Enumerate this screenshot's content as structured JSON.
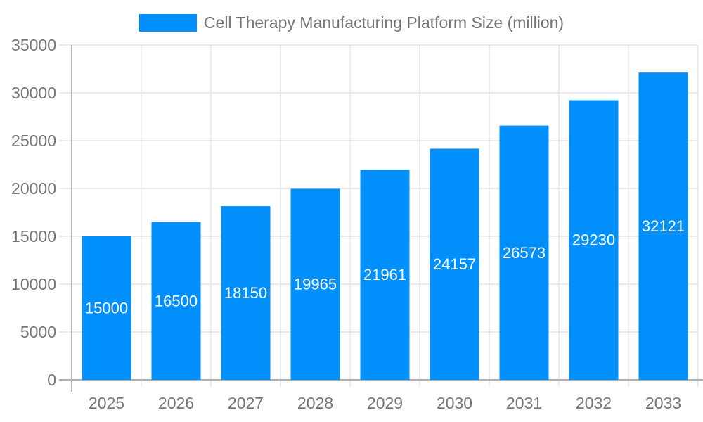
{
  "chart_data": {
    "type": "bar",
    "title": "Cell Therapy Manufacturing Platform Size (million)",
    "categories": [
      "2025",
      "2026",
      "2027",
      "2028",
      "2029",
      "2030",
      "2031",
      "2032",
      "2033"
    ],
    "values": [
      15000,
      16500,
      18150,
      19965,
      21961,
      24157,
      26573,
      29230,
      32121
    ],
    "xlabel": "",
    "ylabel": "",
    "ylim": [
      0,
      35000
    ],
    "yticks": [
      0,
      5000,
      10000,
      15000,
      20000,
      25000,
      30000,
      35000
    ],
    "grid": true,
    "legend_position": "top",
    "bar_color": "#008FFB",
    "value_label_color": "#ffffff",
    "axis_text_color": "#757575",
    "grid_color": "#e4e4e4",
    "axis_line_color": "#b0b0b0"
  }
}
